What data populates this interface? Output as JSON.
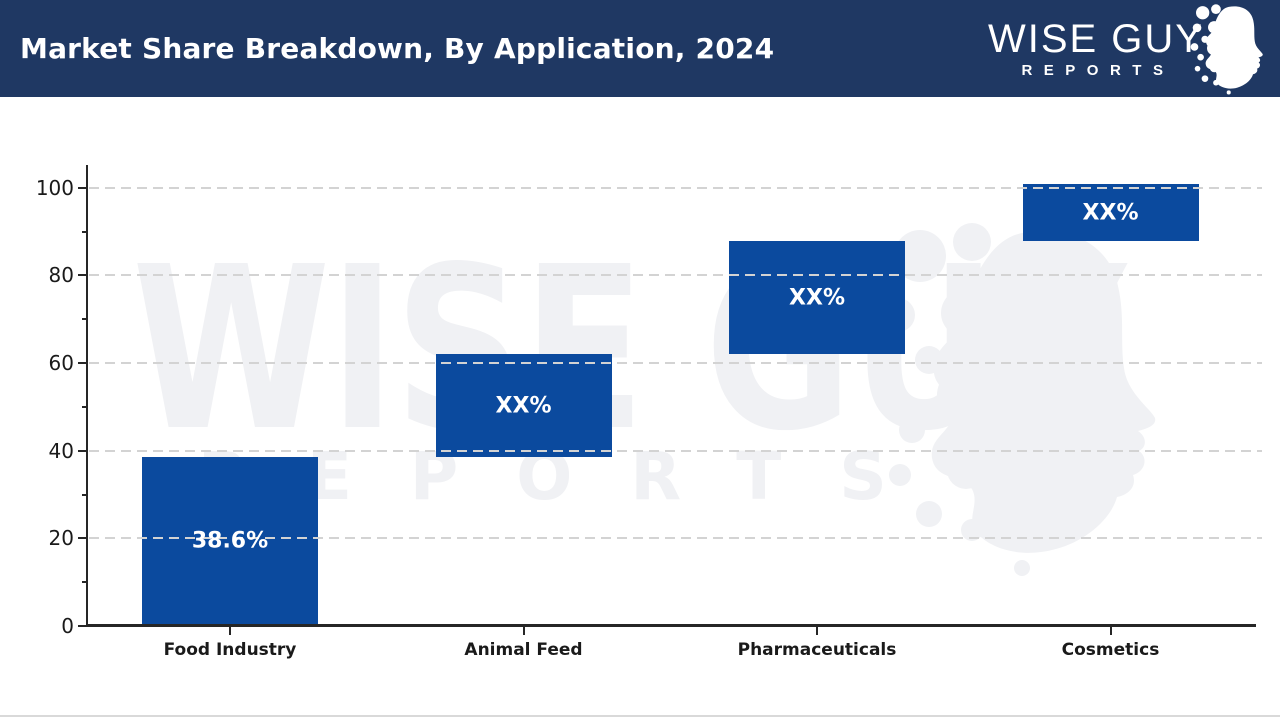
{
  "header": {
    "title": "Market Share Breakdown, By Application, 2024"
  },
  "brand": {
    "name_line1": "WISE GUY",
    "name_line2": "REPORTS"
  },
  "watermark": {
    "line1": "WISE GUY",
    "line2": "REPORTS"
  },
  "chart_data": {
    "type": "bar",
    "subtype": "waterfall",
    "title": "Market Share Breakdown, By Application, 2024",
    "categories": [
      "Food Industry",
      "Animal Feed",
      "Pharmaceuticals",
      "Cosmetics"
    ],
    "segments": [
      {
        "category": "Food Industry",
        "from": 0,
        "to": 38.6,
        "label": "38.6%"
      },
      {
        "category": "Animal Feed",
        "from": 38.6,
        "to": 62.0,
        "label": "XX%"
      },
      {
        "category": "Pharmaceuticals",
        "from": 62.0,
        "to": 87.8,
        "label": "XX%"
      },
      {
        "category": "Cosmetics",
        "from": 87.8,
        "to": 100.8,
        "label": "XX%"
      }
    ],
    "y_ticks": [
      0,
      20,
      40,
      60,
      80,
      100
    ],
    "ylim": [
      0,
      105
    ],
    "xlabel": "",
    "ylabel": "",
    "bar_color": "#0B4A9E",
    "value_label_color": "#FFFFFF",
    "grid": {
      "horizontal": true,
      "style": "dashed",
      "color": "#D3D3D3"
    },
    "axis_color": "#262626",
    "legend": "none"
  },
  "colors": {
    "header_bg": "#1F3863",
    "watermark": "#F0F1F4"
  }
}
